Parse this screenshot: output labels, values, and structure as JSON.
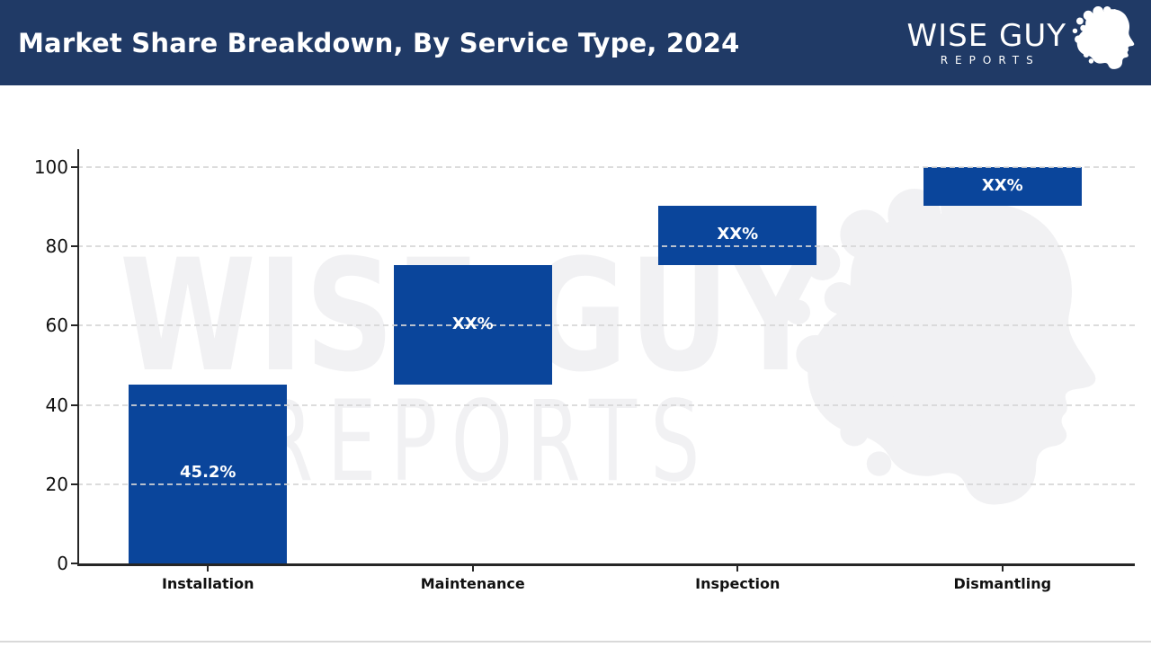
{
  "header": {
    "title": "Market Share Breakdown, By Service Type, 2024",
    "bg_color": "#203a66",
    "logo": {
      "line1": "WISE GUY",
      "line2": "REPORTS",
      "head_icon": "dotted-head-profile"
    }
  },
  "watermark": {
    "line1": "WISE GUY",
    "line2": "REPORTS",
    "head_icon": "dotted-head-profile"
  },
  "chart_data": {
    "type": "bar",
    "subtype": "waterfall",
    "title": "Market Share Breakdown, By Service Type, 2024",
    "categories": [
      "Installation",
      "Maintenance",
      "Inspection",
      "Dismantling"
    ],
    "segments": [
      {
        "category": "Installation",
        "start": 0,
        "end": 45.2,
        "value": 45.2,
        "label": "45.2%"
      },
      {
        "category": "Maintenance",
        "start": 45.2,
        "end": 75.2,
        "value": 30.0,
        "label": "XX%"
      },
      {
        "category": "Inspection",
        "start": 75.2,
        "end": 90.2,
        "value": 15.0,
        "label": "XX%"
      },
      {
        "category": "Dismantling",
        "start": 90.2,
        "end": 100,
        "value": 9.8,
        "label": "XX%"
      }
    ],
    "xlabel": "",
    "ylabel": "",
    "ylim": [
      0,
      105
    ],
    "yticks": [
      0,
      20,
      40,
      60,
      80,
      100
    ],
    "grid": "horizontal dashed, drawn above bars",
    "legend": "none",
    "bar_color": "#0a459b",
    "bar_label_color": "#ffffff",
    "grid_color": "#d6d6d6",
    "axis_color": "#262626"
  }
}
